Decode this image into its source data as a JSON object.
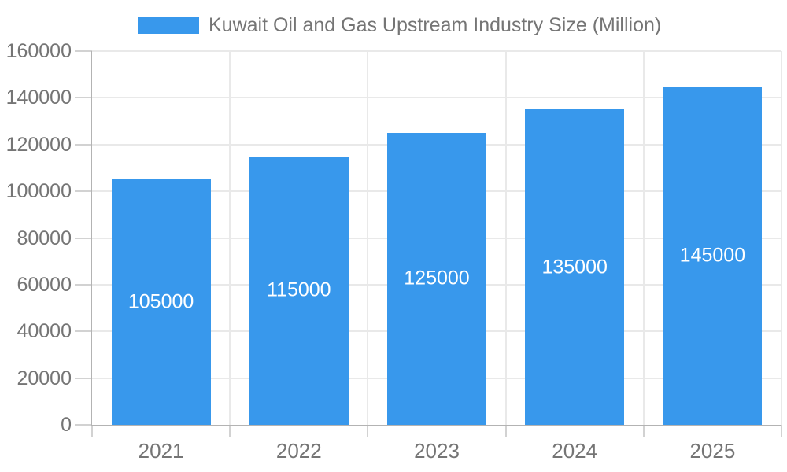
{
  "chart_data": {
    "type": "bar",
    "title": "Kuwait Oil and Gas Upstream Industry Size (Million)",
    "categories": [
      "2021",
      "2022",
      "2023",
      "2024",
      "2025"
    ],
    "values": [
      105000,
      115000,
      125000,
      135000,
      145000
    ],
    "bar_labels": [
      "105000",
      "115000",
      "125000",
      "135000",
      "145000"
    ],
    "series": [
      {
        "name": "Kuwait Oil and Gas Upstream Industry Size (Million)",
        "values": [
          105000,
          115000,
          125000,
          135000,
          145000
        ]
      }
    ],
    "xlabel": "",
    "ylabel": "",
    "ylim": [
      0,
      160000
    ],
    "ytick_step": 20000,
    "ytick_labels": [
      "0",
      "20000",
      "40000",
      "60000",
      "80000",
      "100000",
      "120000",
      "140000",
      "160000"
    ],
    "grid": true,
    "legend_position": "top",
    "colors": {
      "bar": "#3898EC",
      "tick_label": "#757575",
      "legend_text": "#757575",
      "gridline": "#e9e9e9",
      "axis_line": "#b3b3b3",
      "tick_mark": "#d2d2d2",
      "bar_label_text": "#ffffff",
      "background": "#ffffff"
    }
  }
}
